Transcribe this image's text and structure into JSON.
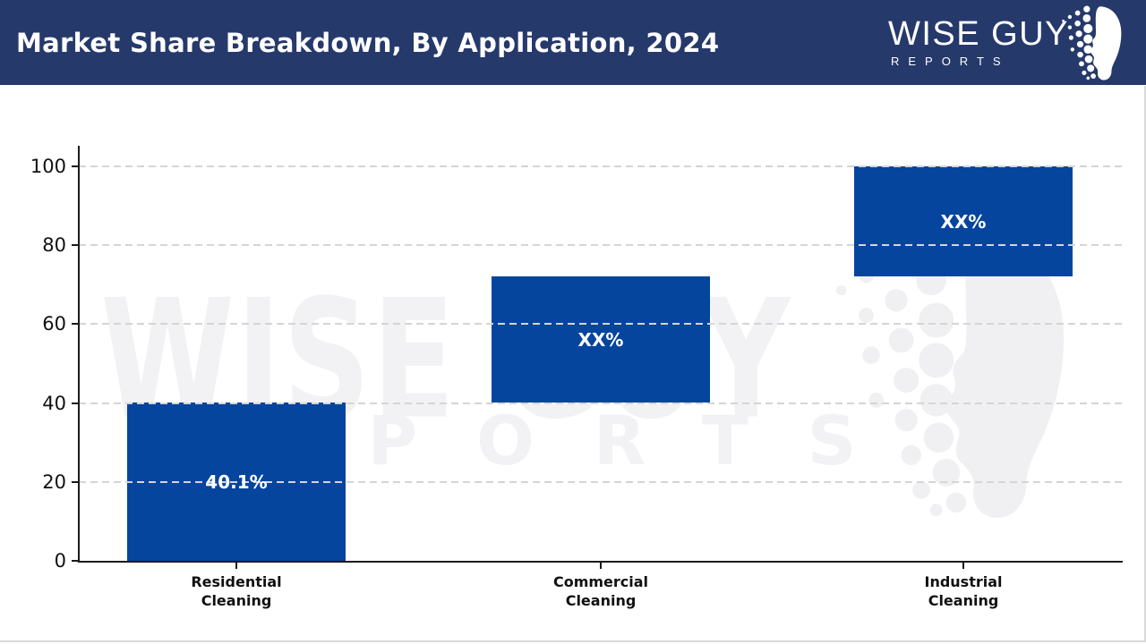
{
  "header": {
    "title": "Market Share Breakdown, By Application, 2024",
    "background_color": "#25396b",
    "logo": {
      "wordmark": "WISE GUY",
      "subtext": "REPORTS"
    }
  },
  "watermark": {
    "wordmark": "WISE GUY",
    "subtext": "REPORTS"
  },
  "chart_data": {
    "type": "bar",
    "subtype": "stacked-waterfall",
    "title": "Market Share Breakdown, By Application, 2024",
    "unit": "%",
    "categories": [
      "Residential Cleaning",
      "Commercial Cleaning",
      "Industrial Cleaning"
    ],
    "category_lines": [
      [
        "Residential",
        "Cleaning"
      ],
      [
        "Commercial",
        "Cleaning"
      ],
      [
        "Industrial",
        "Cleaning"
      ]
    ],
    "segments": [
      {
        "category": "Residential Cleaning",
        "start": 0,
        "end": 40.1,
        "label": "40.1%"
      },
      {
        "category": "Commercial Cleaning",
        "start": 40.1,
        "end": 72.1,
        "label": "XX%"
      },
      {
        "category": "Industrial Cleaning",
        "start": 72.1,
        "end": 100,
        "label": "XX%"
      }
    ],
    "yticks": [
      0,
      20,
      40,
      60,
      80,
      100
    ],
    "ylim": [
      0,
      100
    ],
    "grid": {
      "horizontal": true,
      "style": "dashed"
    },
    "legend": "none",
    "colors": {
      "bar": "#05459d",
      "bar_label": "#ffffff",
      "grid": "#d5d5d5",
      "axis": "#1a1a1a"
    }
  }
}
